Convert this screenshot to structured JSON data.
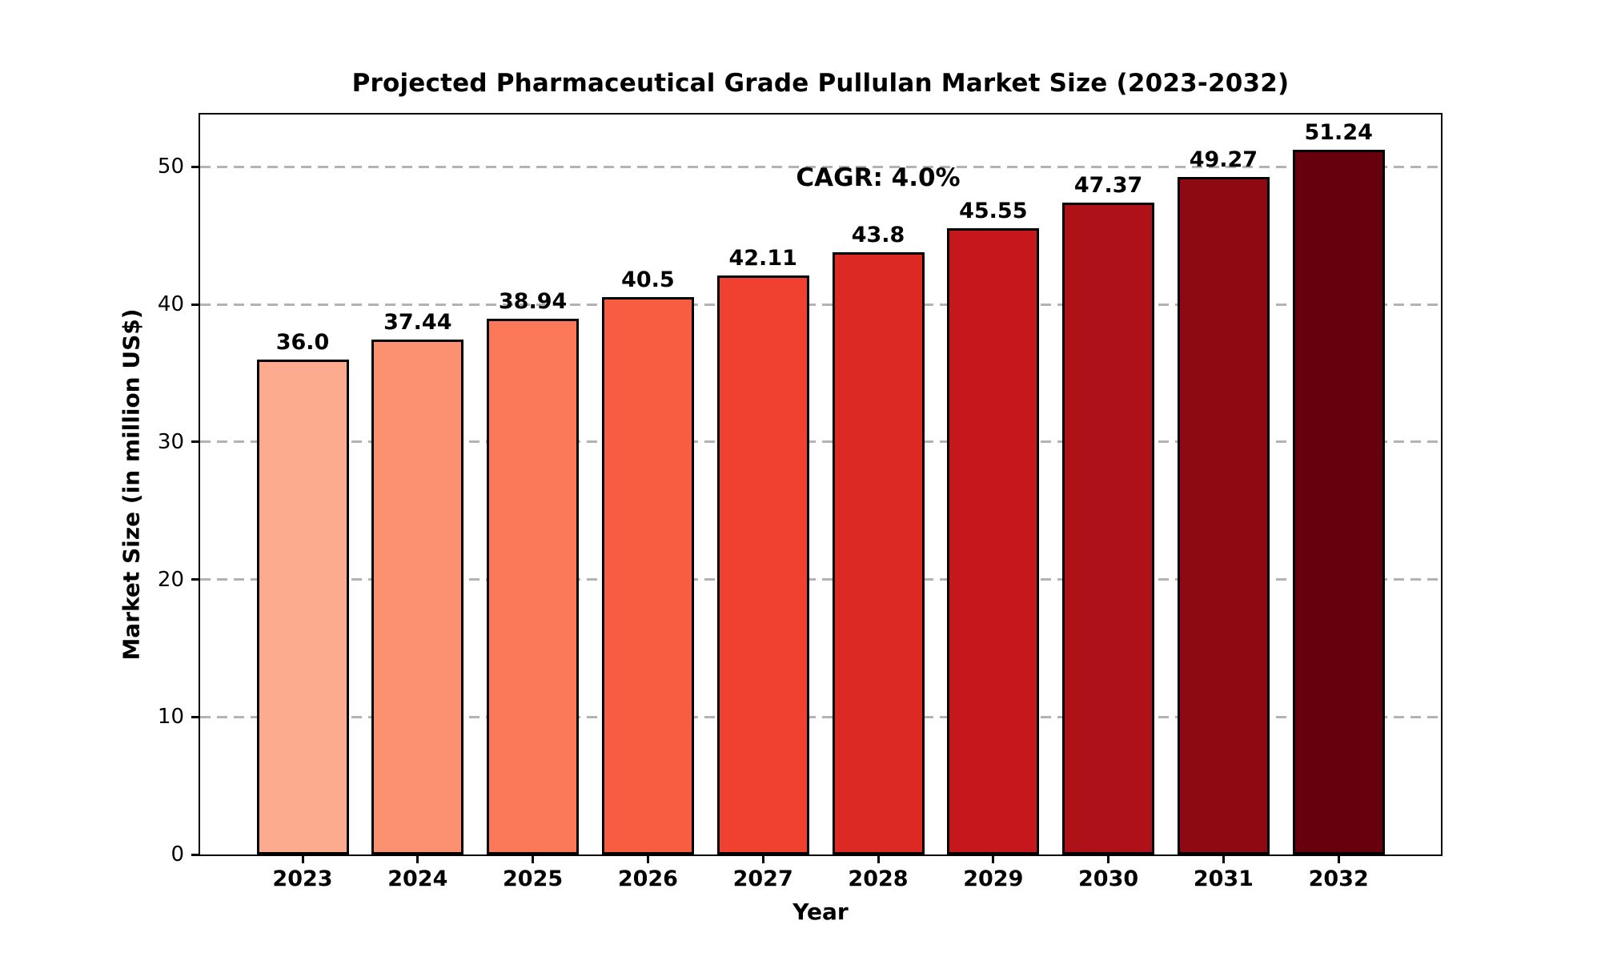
{
  "chart_data": {
    "type": "bar",
    "title": "Projected Pharmaceutical Grade Pullulan Market Size (2023-2032)",
    "xlabel": "Year",
    "ylabel": "Market Size (in million US$)",
    "annotation": "CAGR: 4.0%",
    "categories": [
      "2023",
      "2024",
      "2025",
      "2026",
      "2027",
      "2028",
      "2029",
      "2030",
      "2031",
      "2032"
    ],
    "values": [
      36.0,
      37.44,
      38.94,
      40.5,
      42.11,
      43.8,
      45.55,
      47.37,
      49.27,
      51.24
    ],
    "bar_labels": [
      "36.0",
      "37.44",
      "38.94",
      "40.5",
      "42.11",
      "43.8",
      "45.55",
      "47.37",
      "49.27",
      "51.24"
    ],
    "bar_colors": [
      "#FCAB8E",
      "#FC9171",
      "#FB7858",
      "#F85D42",
      "#F0402F",
      "#DD2924",
      "#C6171C",
      "#AE1117",
      "#8E0912",
      "#67000D"
    ],
    "bar_edge_color": "#000000",
    "yticks": [
      0,
      10,
      20,
      30,
      40,
      50
    ],
    "ylim": [
      0,
      53.8
    ],
    "grid": "horizontal dashed gray, behind bars",
    "gridline_color": "#b3b3b3",
    "legend": "none"
  }
}
